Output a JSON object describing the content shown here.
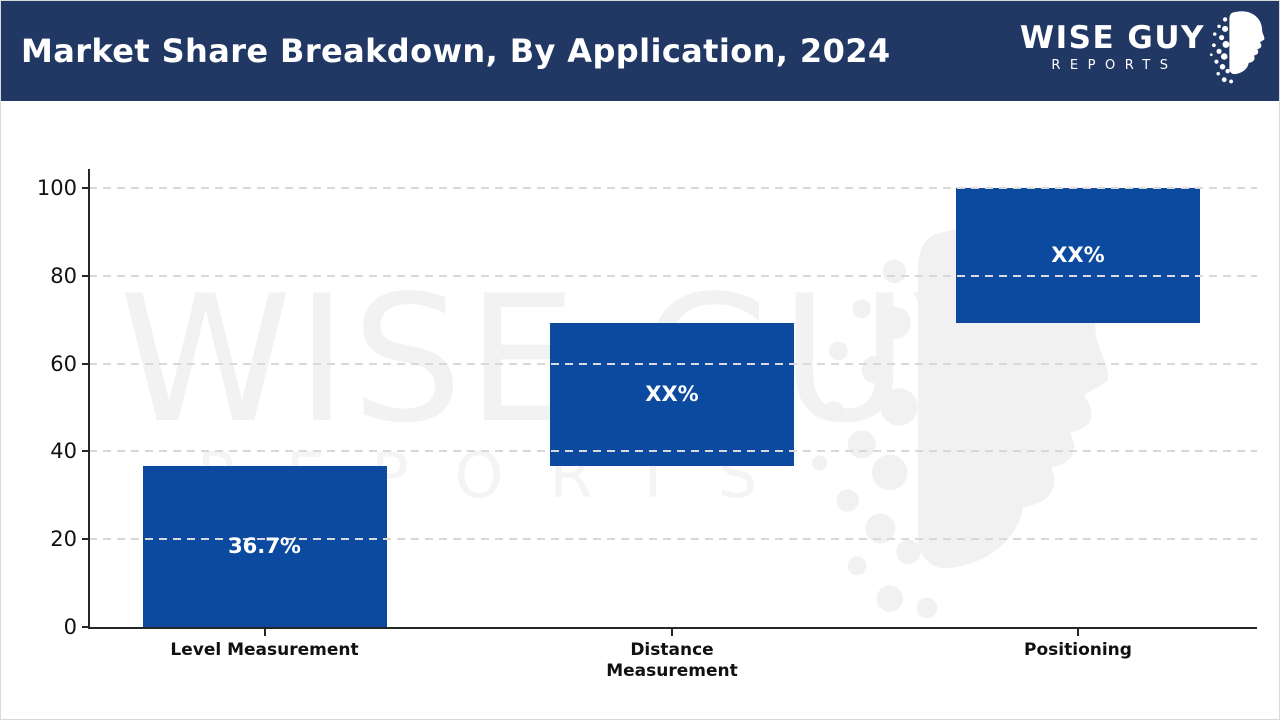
{
  "header": {
    "title": "Market Share Breakdown, By Application, 2024",
    "bg_color": "#213764",
    "logo": {
      "line1": "WISE GUY",
      "line2": "REPORTS",
      "face_icon": "dotted-profile-face-icon"
    }
  },
  "watermark": {
    "line1": "WISE GUY",
    "line2": "REPORTS",
    "face_icon": "dotted-profile-face-icon"
  },
  "chart_data": {
    "type": "bar",
    "variant": "waterfall-stacked-percentage",
    "title": "Market Share Breakdown, By Application, 2024",
    "xlabel": "",
    "ylabel": "",
    "ylim": [
      0,
      100
    ],
    "yticks": [
      0,
      20,
      40,
      60,
      80,
      100
    ],
    "grid": "dashed-horizontal-over-bars",
    "legend": "none",
    "categories": [
      "Level Measurement",
      "Distance\nMeasurement",
      "Positioning"
    ],
    "segments": [
      {
        "category": "Level Measurement",
        "start": 0,
        "end": 36.7,
        "label": "36.7%"
      },
      {
        "category": "Distance Measurement",
        "start": 36.7,
        "end": 69.3,
        "label": "XX%"
      },
      {
        "category": "Positioning",
        "start": 69.3,
        "end": 100,
        "label": "XX%"
      }
    ],
    "colors": {
      "bar": "#0b4a9f",
      "bar_label": "#ffffff",
      "grid": "#d9d9d9",
      "axis": "#262626",
      "tick_label": "#111111",
      "header_bg": "#213764",
      "watermark": "#f2f2f2"
    }
  }
}
